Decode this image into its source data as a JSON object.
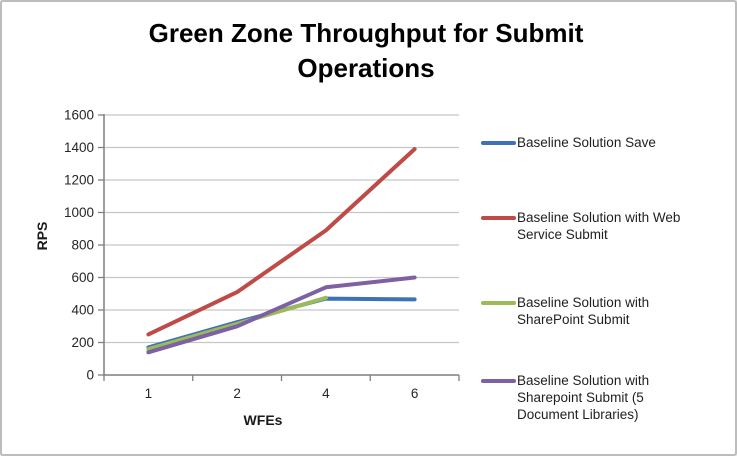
{
  "window": {
    "background": "#ffffff",
    "border_color": "#bdbdbd"
  },
  "colors": {
    "gridline": "#c6c6c6",
    "axis": "#7f7f7f",
    "tick_text": "#262626",
    "title_text": "#000000"
  },
  "chart_data": {
    "type": "line",
    "title": "Green Zone Throughput for Submit Operations",
    "xlabel": "WFEs",
    "ylabel": "RPS",
    "categories": [
      "1",
      "2",
      "4",
      "6"
    ],
    "ylim": [
      0,
      1600
    ],
    "ytick_step": 200,
    "ytick_labels": [
      "0",
      "200",
      "400",
      "600",
      "800",
      "1000",
      "1200",
      "1400",
      "1600"
    ],
    "grid": true,
    "legend_position": "right",
    "series": [
      {
        "name": "Baseline Solution Save",
        "color": "#3d71b8",
        "values": [
          170,
          325,
          470,
          465
        ]
      },
      {
        "name": "Baseline Solution with Web Service Submit",
        "color": "#be4b48",
        "values": [
          250,
          510,
          890,
          1390
        ]
      },
      {
        "name": "Baseline Solution with SharePoint Submit",
        "color": "#9cba58",
        "values": [
          160,
          315,
          475,
          null
        ]
      },
      {
        "name": "Baseline Solution with Sharepoint Submit (5 Document Libraries)",
        "color": "#7d61a3",
        "values": [
          140,
          300,
          540,
          600
        ]
      }
    ]
  }
}
